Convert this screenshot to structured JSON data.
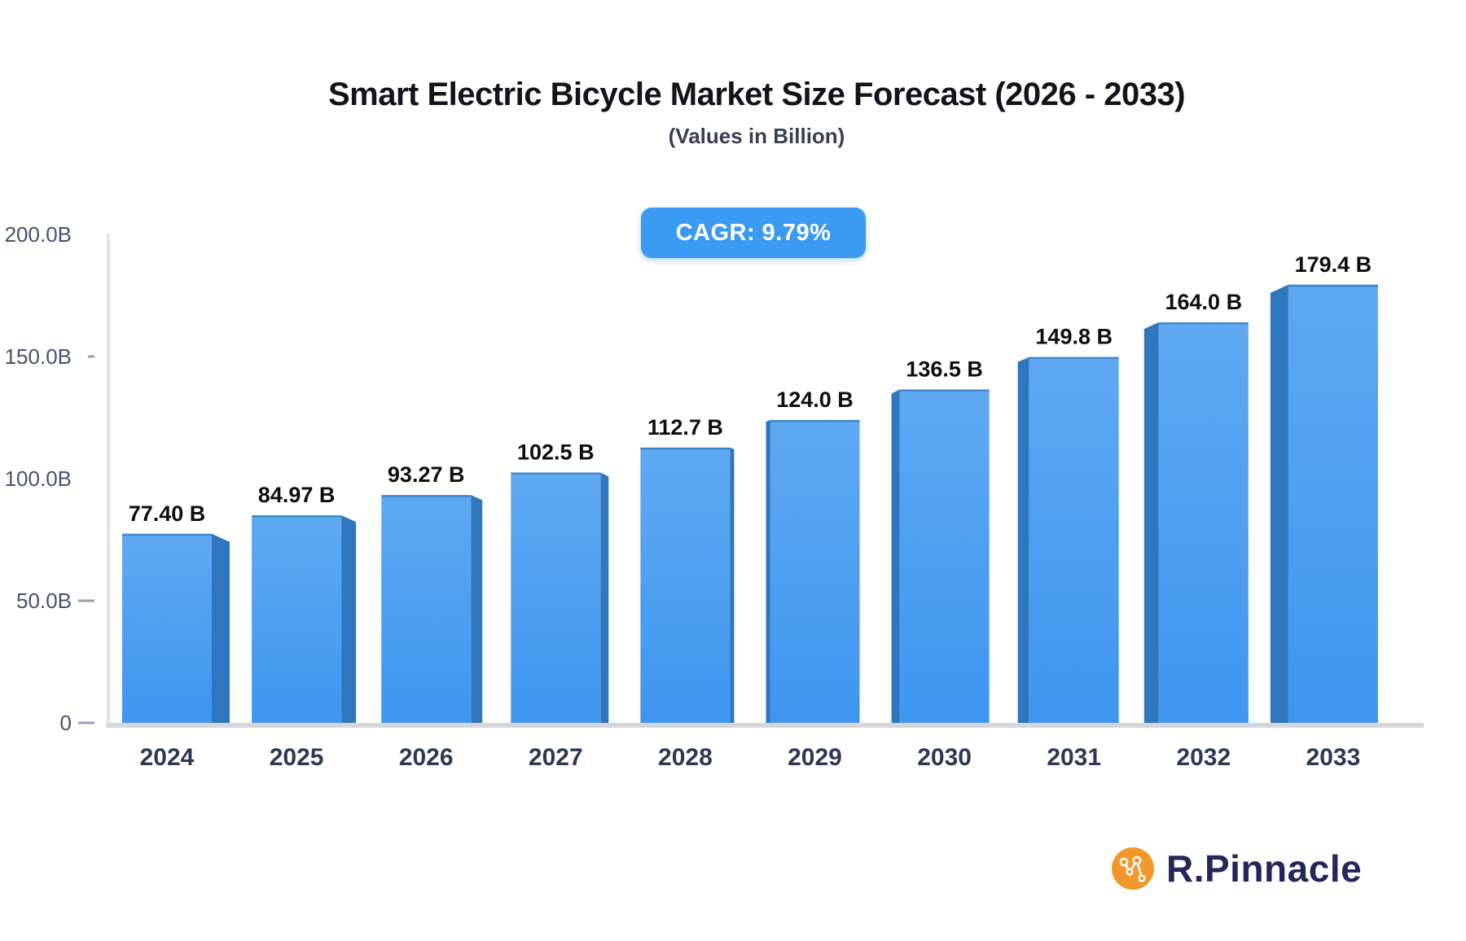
{
  "title": "Smart Electric Bicycle Market Size Forecast (2026 - 2033)",
  "subtitle": "(Values in Billion)",
  "badge": {
    "label": "CAGR: 9.79%",
    "bg_color": "#3B9AF1",
    "text_color": "#FFFFFF"
  },
  "brand": {
    "name": "R.Pinnacle",
    "icon": "network-nodes-icon",
    "icon_bg_color": "#F2982A",
    "name_color": "#23275A"
  },
  "colors": {
    "bar_front_top": "#5FA9F2",
    "bar_front_bottom": "#3E96EF",
    "bar_side": "#2E76BD",
    "bar_top_stroke": "#3B85CF",
    "axis_line": "#E0E3E8",
    "baseline": "#D3D7DC",
    "tick_dash": "#98A0AC",
    "ytick_label": "#46546E",
    "category_label": "#2D3954",
    "value_label": "#0E0E0E"
  },
  "chart_data": {
    "type": "bar",
    "style": "3d-extruded-bars",
    "title": "Smart Electric Bicycle Market Size Forecast (2026 - 2033)",
    "subtitle": "(Values in Billion)",
    "categories": [
      "2024",
      "2025",
      "2026",
      "2027",
      "2028",
      "2029",
      "2030",
      "2031",
      "2032",
      "2033"
    ],
    "values": [
      77.4,
      84.97,
      93.27,
      102.5,
      112.7,
      124.0,
      136.5,
      149.8,
      164.0,
      179.4
    ],
    "value_labels": [
      "77.40 B",
      "84.97 B",
      "93.27 B",
      "102.5 B",
      "112.7 B",
      "124.0 B",
      "136.5 B",
      "149.8 B",
      "164.0 B",
      "179.4 B"
    ],
    "ytick_values": [
      0,
      50,
      100,
      150,
      200
    ],
    "ytick_labels": [
      "0",
      "50.0B",
      "100.0B",
      "150.0B",
      "200.0B"
    ],
    "ylim": [
      0,
      200
    ],
    "xlabel": "",
    "ylabel": "",
    "grid": false,
    "legend": false
  }
}
